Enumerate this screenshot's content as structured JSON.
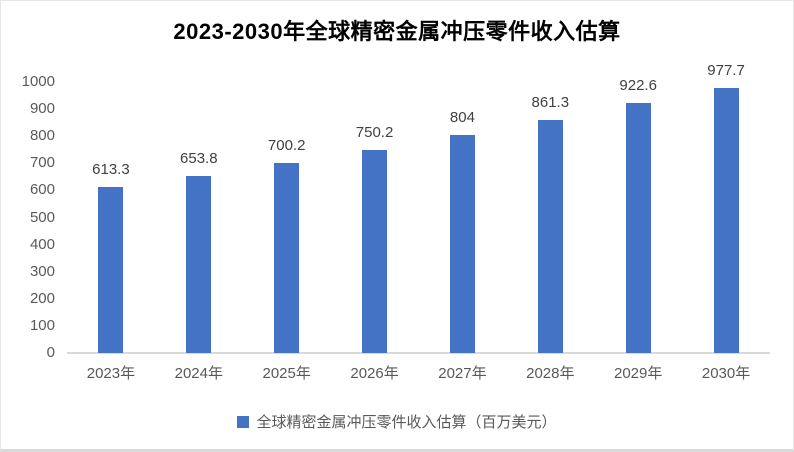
{
  "chart_data": {
    "type": "bar",
    "title": "2023-2030年全球精密金属冲压零件收入估算",
    "categories": [
      "2023年",
      "2024年",
      "2025年",
      "2026年",
      "2027年",
      "2028年",
      "2029年",
      "2030年"
    ],
    "values": [
      613.3,
      653.8,
      700.2,
      750.2,
      804,
      861.3,
      922.6,
      977.7
    ],
    "data_labels": [
      "613.3",
      "653.8",
      "700.2",
      "750.2",
      "804",
      "861.3",
      "922.6",
      "977.7"
    ],
    "legend_entries": [
      "全球精密金属冲压零件收入估算（百万美元）"
    ],
    "xlabel": "",
    "ylabel": "",
    "ylim": [
      0,
      1000
    ],
    "yticks": [
      0,
      100,
      200,
      300,
      400,
      500,
      600,
      700,
      800,
      900,
      1000
    ],
    "grid": false,
    "legend_position": "bottom",
    "bar_color": "#4472C4",
    "axis_text_color": "#595959",
    "data_label_color": "#404040",
    "baseline_color": "#d9d9d9",
    "title_color": "#000000"
  }
}
